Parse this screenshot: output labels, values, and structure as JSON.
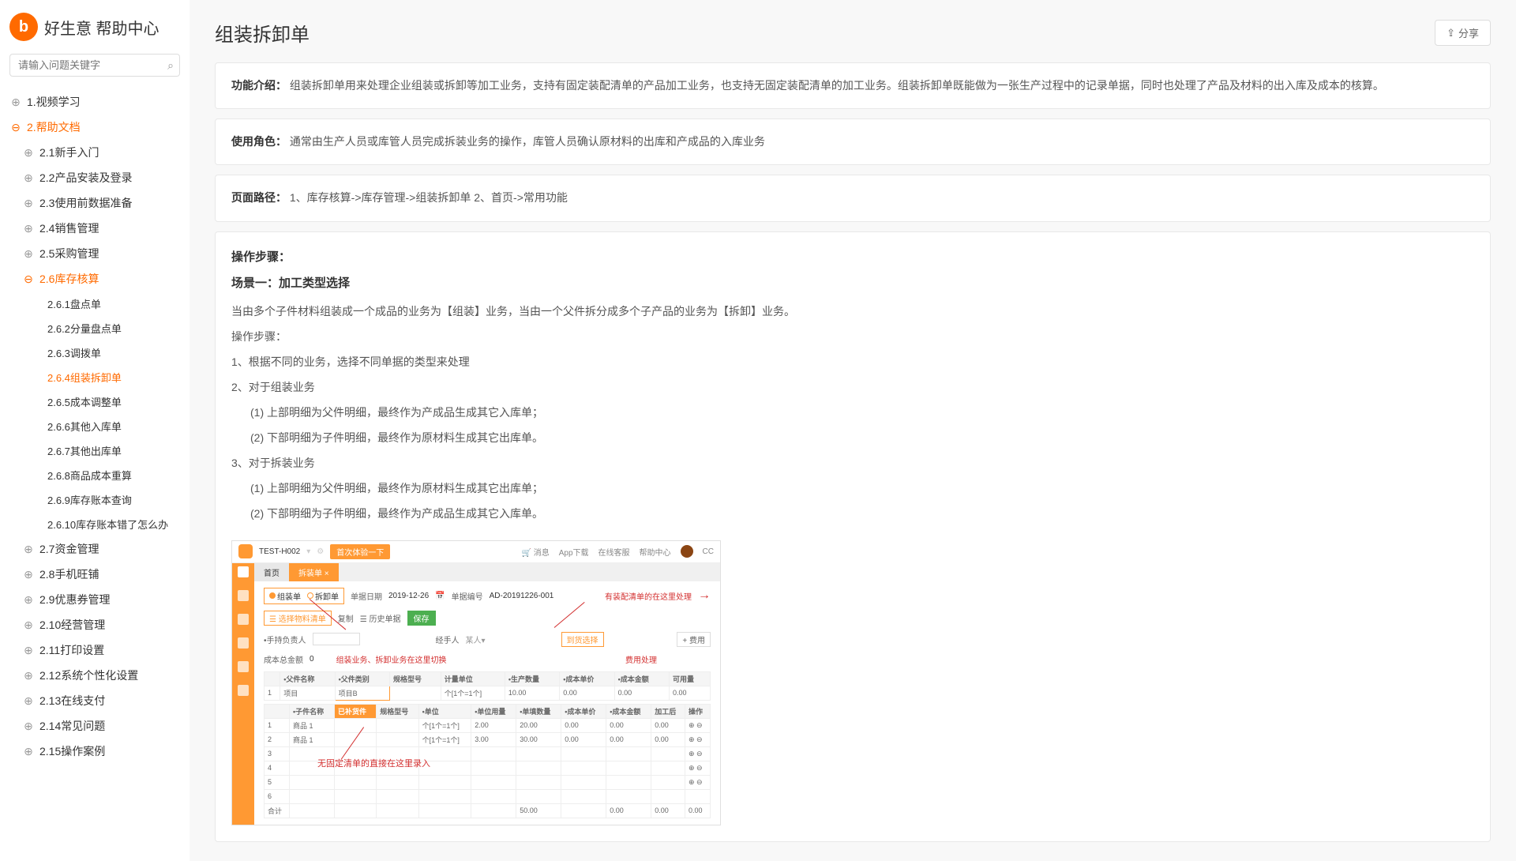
{
  "brand": {
    "logo_letter": "b",
    "title": "好生意 帮助中心"
  },
  "search": {
    "placeholder": "请输入问题关键字"
  },
  "share_label": "分享",
  "nav": {
    "lvl1": [
      {
        "icon": "plus",
        "label": "1.视频学习"
      },
      {
        "icon": "minus",
        "label": "2.帮助文档",
        "active": true
      }
    ],
    "lvl2": [
      {
        "icon": "plus",
        "label": "2.1新手入门"
      },
      {
        "icon": "plus",
        "label": "2.2产品安装及登录"
      },
      {
        "icon": "plus",
        "label": "2.3使用前数据准备"
      },
      {
        "icon": "plus",
        "label": "2.4销售管理"
      },
      {
        "icon": "plus",
        "label": "2.5采购管理"
      },
      {
        "icon": "minus",
        "label": "2.6库存核算",
        "active": true
      }
    ],
    "lvl3": [
      {
        "label": "2.6.1盘点单"
      },
      {
        "label": "2.6.2分量盘点单"
      },
      {
        "label": "2.6.3调拨单"
      },
      {
        "label": "2.6.4组装拆卸单",
        "active": true
      },
      {
        "label": "2.6.5成本调整单"
      },
      {
        "label": "2.6.6其他入库单"
      },
      {
        "label": "2.6.7其他出库单"
      },
      {
        "label": "2.6.8商品成本重算"
      },
      {
        "label": "2.6.9库存账本查询"
      },
      {
        "label": "2.6.10库存账本错了怎么办"
      }
    ],
    "lvl2b": [
      {
        "icon": "plus",
        "label": "2.7资金管理"
      },
      {
        "icon": "plus",
        "label": "2.8手机旺铺"
      },
      {
        "icon": "plus",
        "label": "2.9优惠券管理"
      },
      {
        "icon": "plus",
        "label": "2.10经营管理"
      },
      {
        "icon": "plus",
        "label": "2.11打印设置"
      },
      {
        "icon": "plus",
        "label": "2.12系统个性化设置"
      },
      {
        "icon": "plus",
        "label": "2.13在线支付"
      },
      {
        "icon": "plus",
        "label": "2.14常见问题"
      },
      {
        "icon": "plus",
        "label": "2.15操作案例"
      }
    ]
  },
  "page": {
    "title": "组装拆卸单",
    "intro_label": "功能介绍：",
    "intro_text": "组装拆卸单用来处理企业组装或拆卸等加工业务，支持有固定装配清单的产品加工业务，也支持无固定装配清单的加工业务。组装拆卸单既能做为一张生产过程中的记录单据，同时也处理了产品及材料的出入库及成本的核算。",
    "role_label": "使用角色：",
    "role_text": "通常由生产人员或库管人员完成拆装业务的操作，库管人员确认原材料的出库和产成品的入库业务",
    "path_label": "页面路径：",
    "path_text": "1、库存核算->库存管理->组装拆卸单 2、首页->常用功能",
    "steps_title": "操作步骤：",
    "scenario1_title": "场景一：加工类型选择",
    "scenario1_desc": "当由多个子件材料组装成一个成品的业务为【组装】业务，当由一个父件拆分成多个子产品的业务为【拆卸】业务。",
    "steps_label": "操作步骤：",
    "step1": "1、根据不同的业务，选择不同单据的类型来处理",
    "step2": "2、对于组装业务",
    "step2_1": "(1) 上部明细为父件明细，最终作为产成品生成其它入库单；",
    "step2_2": "(2) 下部明细为子件明细，最终作为原材料生成其它出库单。",
    "step3": "3、对于拆装业务",
    "step3_1": "(1) 上部明细为父件明细，最终作为原材料生成其它出库单；",
    "step3_2": "(2) 下部明细为子件明细，最终作为产成品生成其它入库单。"
  },
  "screenshot": {
    "test_label": "TEST-H002",
    "app_download": "App下载",
    "online_service": "在线客服",
    "help_center": "帮助中心",
    "user": "CC",
    "tab_home": "首页",
    "tab_active": "拆装单",
    "radio1": "组装单",
    "radio2": "拆卸单",
    "date_label": "单据日期",
    "date_value": "2019-12-26",
    "doc_label": "单据编号",
    "doc_value": "AD-20191226-001",
    "person_label": "手持负责人",
    "handler_label": "经手人",
    "template_btn": "选择物料清单",
    "config_btn": "复制",
    "history_btn": "历史单据",
    "cost_label": "到货选择",
    "fee_btn": "费用",
    "save_btn": "保存",
    "cost_total_label": "成本总金额",
    "cost_total_value": "0",
    "annot1": "有装配清单的在这里处理",
    "annot2": "组装业务、拆卸业务在这里切换",
    "annot3": "费用处理",
    "annot4": "无固定清单的直接在这里录入",
    "th_parent": [
      "",
      "•父件名称",
      "•父件类别",
      "规格型号",
      "计量单位",
      "•生产数量",
      "•成本单价",
      "•成本金额",
      "可用量"
    ],
    "td_parent": [
      "1",
      "项目",
      "项目B",
      "",
      "个[1个=1个]",
      "10.00",
      "0.00",
      "0.00",
      "0.00"
    ],
    "th_child": [
      "",
      "•子件名称",
      "已补货件",
      "规格型号",
      "•单位",
      "•单位用量",
      "•单填数量",
      "•成本单价",
      "•成本金额",
      "加工后",
      "操作"
    ],
    "rows_child": [
      [
        "1",
        "商品 1",
        "",
        "",
        "个[1个=1个]",
        "2.00",
        "20.00",
        "0.00",
        "0.00",
        "0.00",
        "⊕ ⊖"
      ],
      [
        "2",
        "商品 1",
        "",
        "",
        "个[1个=1个]",
        "3.00",
        "30.00",
        "0.00",
        "0.00",
        "0.00",
        "⊕ ⊖"
      ],
      [
        "3",
        "",
        "",
        "",
        "",
        "",
        "",
        "",
        "",
        "",
        "⊕ ⊖"
      ],
      [
        "4",
        "",
        "",
        "",
        "",
        "",
        "",
        "",
        "",
        "",
        "⊕ ⊖"
      ],
      [
        "5",
        "",
        "",
        "",
        "",
        "",
        "",
        "",
        "",
        "",
        "⊕ ⊖"
      ],
      [
        "6",
        "",
        "",
        "",
        "",
        "",
        "",
        "",
        "",
        "",
        ""
      ]
    ],
    "totals": [
      "合计",
      "",
      "",
      "",
      "",
      "",
      "50.00",
      "",
      "0.00",
      "0.00",
      "0.00"
    ]
  }
}
